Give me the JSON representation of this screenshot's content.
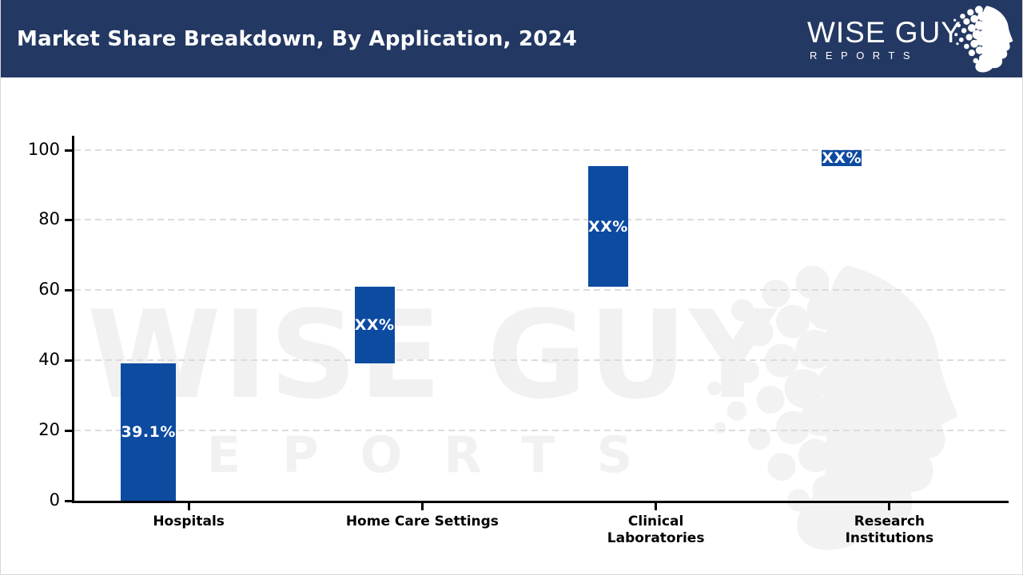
{
  "header": {
    "title": "Market Share Breakdown, By Application, 2024",
    "bg_color": "#233862",
    "logo": {
      "wordmark": "WISE GUY",
      "subtext": "REPORTS"
    }
  },
  "watermark": {
    "wordmark": "WISE GUY",
    "subtext": "REPORTS"
  },
  "chart_data": {
    "type": "bar",
    "subtype": "floating-segment-waterfall",
    "title": "Market Share Breakdown, By Application, 2024",
    "categories": [
      "Hospitals",
      "Home Care Settings",
      "Clinical\nLaboratories",
      "Research\nInstitutions"
    ],
    "bars": [
      {
        "category": "Hospitals",
        "start": 0,
        "end": 39.1,
        "label": "39.1%"
      },
      {
        "category": "Home Care Settings",
        "start": 39.1,
        "end": 60.9,
        "label": "XX%"
      },
      {
        "category": "Clinical Laboratories",
        "start": 60.9,
        "end": 95.3,
        "label": "XX%"
      },
      {
        "category": "Research Institutions",
        "start": 95.3,
        "end": 100,
        "label": "XX%"
      }
    ],
    "ylim": [
      0,
      104
    ],
    "yticks": [
      0,
      20,
      40,
      60,
      80,
      100
    ],
    "grid": {
      "axis": "y",
      "style": "dashed",
      "color": "#dcdcdc"
    },
    "legend": "none",
    "bar_color": "#0d4ba1",
    "bar_label_color": "#ffffff",
    "axis_color": "#000000"
  }
}
